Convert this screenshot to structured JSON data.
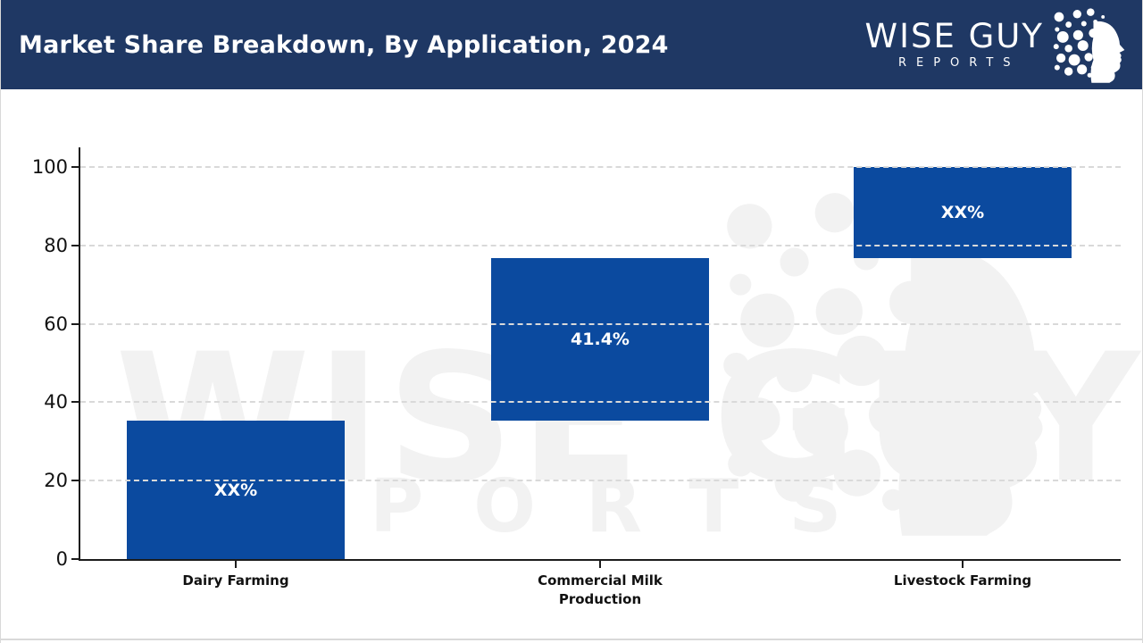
{
  "header": {
    "title": "Market Share Breakdown, By Application, 2024",
    "logo": {
      "wordmark": "WISE GUY",
      "subtitle": "REPORTS"
    }
  },
  "watermark": {
    "wordmark": "WISE GUY",
    "subtitle": "REPORTS"
  },
  "colors": {
    "header_bg": "#1f3864",
    "bar": "#0b4a9f",
    "grid": "#d9d9d9",
    "axis": "#1c1c1c",
    "bar_label": "#ffffff",
    "watermark": "#f2f2f2"
  },
  "chart_data": {
    "type": "bar",
    "variant": "stacked-waterfall",
    "title": "Market Share Breakdown, By Application, 2024",
    "categories": [
      "Dairy Farming",
      "Commercial Milk Production",
      "Livestock Farming"
    ],
    "segments": [
      {
        "category": "Dairy Farming",
        "start": 0,
        "end": 35.3,
        "label": "XX%"
      },
      {
        "category": "Commercial Milk Production",
        "start": 35.3,
        "end": 76.7,
        "label": "41.4%"
      },
      {
        "category": "Livestock Farming",
        "start": 76.7,
        "end": 100,
        "label": "XX%"
      }
    ],
    "yticks": [
      0,
      20,
      40,
      60,
      80,
      100
    ],
    "ylim": [
      0,
      105
    ],
    "xlabel": "",
    "ylabel": "",
    "grid": "dashed-horizontal",
    "legend": "none"
  }
}
